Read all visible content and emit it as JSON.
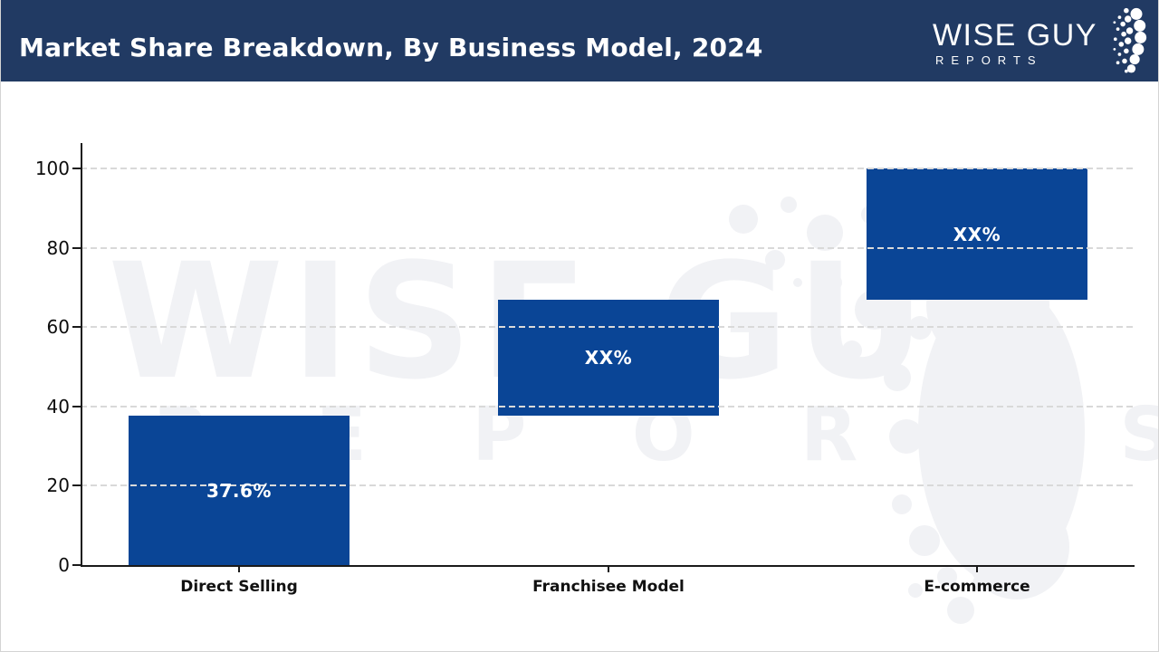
{
  "header": {
    "title": "Market Share Breakdown, By Business Model, 2024",
    "logo": {
      "line1": "WISE GUY",
      "line2": "REPORTS"
    }
  },
  "watermark": {
    "line1": "WISE GUY",
    "line2": "R E P O R T S"
  },
  "chart_data": {
    "type": "bar",
    "subtype": "waterfall",
    "title": "Market Share Breakdown, By Business Model, 2024",
    "categories": [
      "Direct Selling",
      "Franchisee Model",
      "E-commerce"
    ],
    "segments": [
      {
        "category": "Direct Selling",
        "start": 0,
        "end": 37.6,
        "label": "37.6%"
      },
      {
        "category": "Franchisee Model",
        "start": 37.6,
        "end": 67,
        "label": "XX%"
      },
      {
        "category": "E-commerce",
        "start": 67,
        "end": 100,
        "label": "XX%"
      }
    ],
    "xlabel": "",
    "ylabel": "",
    "y_ticks": [
      0,
      20,
      40,
      60,
      80,
      100
    ],
    "ylim": [
      0,
      106
    ],
    "grid": "horizontal-dashed",
    "grid_above_bars": true,
    "legend": "none",
    "bar_color": "#0a4596",
    "bar_label_color": "#ffffff",
    "axis_color": "#1a1a1a",
    "grid_color": "#d9d9d9",
    "tick_label_color": "#0d0d0d"
  },
  "colors": {
    "header_bg": "#213a63",
    "page_bg": "#ffffff",
    "watermark": "#f1f2f5",
    "page_border": "#d4d4d4"
  }
}
